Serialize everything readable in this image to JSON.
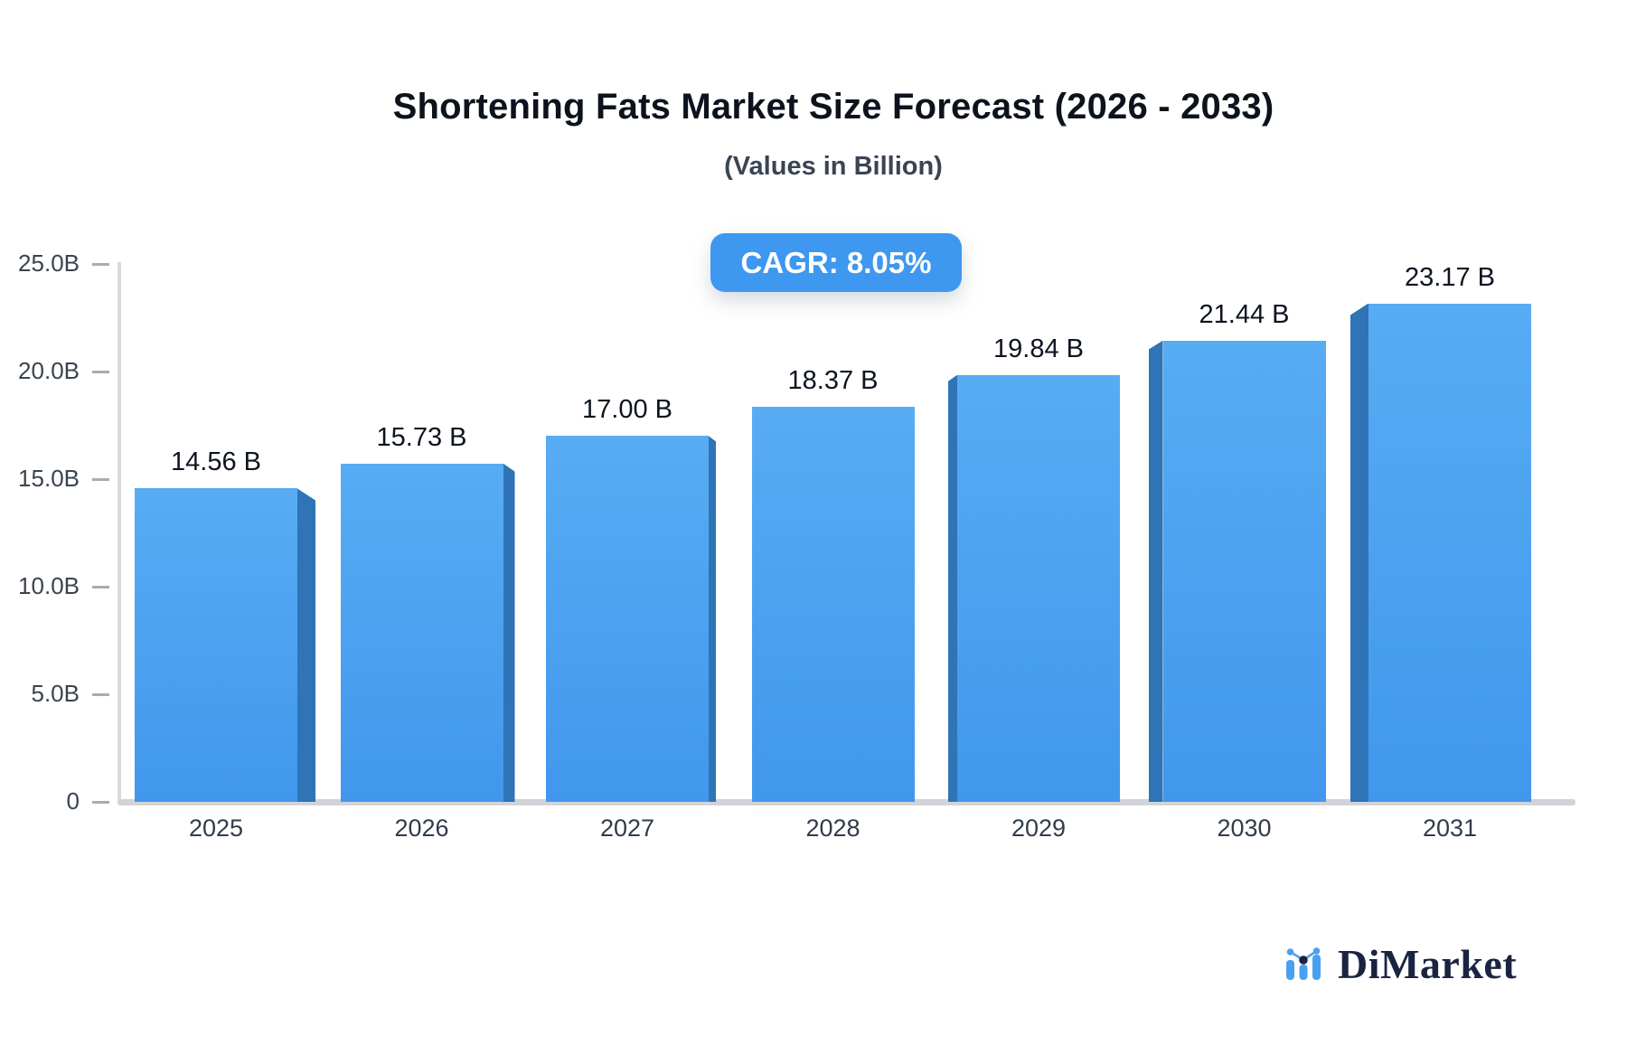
{
  "header": {
    "title": "Shortening Fats Market Size Forecast (2026 - 2033)",
    "subtitle": "(Values in Billion)",
    "cagr_badge": "CAGR: 8.05%"
  },
  "chart_data": {
    "type": "bar",
    "categories": [
      "2025",
      "2026",
      "2027",
      "2028",
      "2029",
      "2030",
      "2031"
    ],
    "values": [
      14.56,
      15.73,
      17.0,
      18.37,
      19.84,
      21.44,
      23.17
    ],
    "bar_labels": [
      "14.56 B",
      "15.73 B",
      "17.00 B",
      "18.37 B",
      "19.84 B",
      "21.44 B",
      "23.17 B"
    ],
    "title": "Shortening Fats Market Size Forecast (2026 - 2033)",
    "subtitle": "(Values in Billion)",
    "annotation": "CAGR: 8.05%",
    "xlabel": "",
    "ylabel": "",
    "ylim": [
      0,
      25
    ],
    "y_tick_values": [
      0,
      5,
      10,
      15,
      20,
      25
    ],
    "y_tick_labels": [
      "0",
      "5.0B",
      "10.0B",
      "15.0B",
      "20.0B",
      "25.0B"
    ],
    "grid": false,
    "legend": false,
    "bar_style": "3d-extruded"
  },
  "colors": {
    "accent": "#3e98ef",
    "bar_face_top": "#58acf4",
    "bar_face_bottom": "#4197ec",
    "bar_side": "#2e74b6",
    "axis_line": "#d9dadf",
    "baseline": "#d1d3d8",
    "tick": "#a7acb4",
    "title_text": "#0d131c",
    "label_text": "#39434f",
    "logo_navy": "#1a2441",
    "logo_blue": "#4aa0f0"
  },
  "footer": {
    "logo_text": "DiMarket"
  }
}
